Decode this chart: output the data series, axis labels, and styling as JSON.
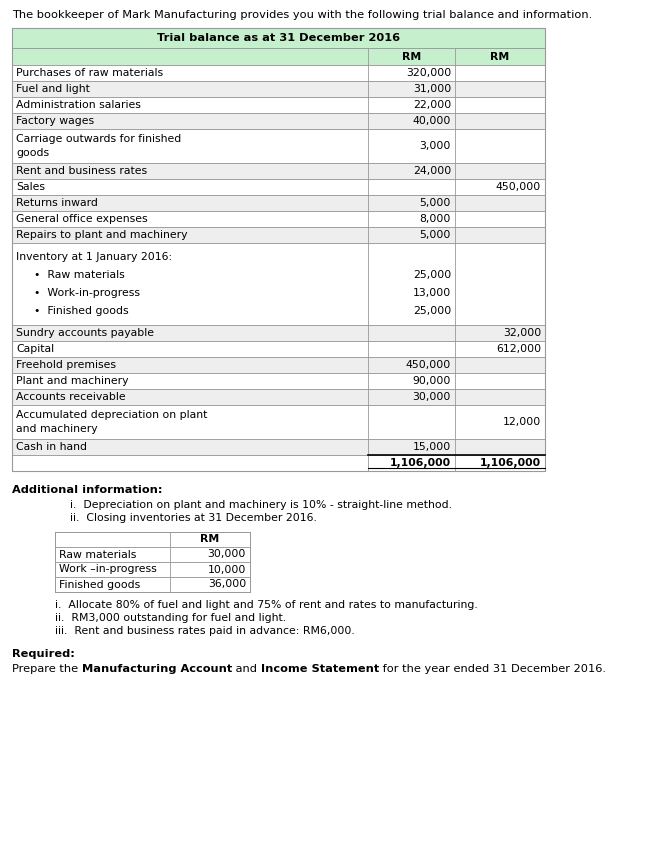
{
  "intro_text": "The bookkeeper of Mark Manufacturing provides you with the following trial balance and information.",
  "table_title": "Trial balance as at 31 December 2016",
  "header_bg": "#c6efce",
  "border_color": "#999999",
  "alt_row_bg": "#eeeeee",
  "white_row_bg": "#ffffff",
  "rows": [
    {
      "label": "Purchases of raw materials",
      "debit": "320,000",
      "credit": "",
      "lh": 1
    },
    {
      "label": "Fuel and light",
      "debit": "31,000",
      "credit": "",
      "lh": 1
    },
    {
      "label": "Administration salaries",
      "debit": "22,000",
      "credit": "",
      "lh": 1
    },
    {
      "label": "Factory wages",
      "debit": "40,000",
      "credit": "",
      "lh": 1
    },
    {
      "label": "Carriage outwards for finished\ngoods",
      "debit": "3,000",
      "credit": "",
      "lh": 2
    },
    {
      "label": "Rent and business rates",
      "debit": "24,000",
      "credit": "",
      "lh": 1
    },
    {
      "label": "Sales",
      "debit": "",
      "credit": "450,000",
      "lh": 1
    },
    {
      "label": "Returns inward",
      "debit": "5,000",
      "credit": "",
      "lh": 1
    },
    {
      "label": "General office expenses",
      "debit": "8,000",
      "credit": "",
      "lh": 1
    },
    {
      "label": "Repairs to plant and machinery",
      "debit": "5,000",
      "credit": "",
      "lh": 1
    },
    {
      "label": "Inventory at 1 January 2016:\n    •  Raw materials\n    •  Work-in-progress\n    •  Finished goods",
      "debit": "25,000\n13,000\n25,000",
      "credit": "",
      "lh": 5
    },
    {
      "label": "Sundry accounts payable",
      "debit": "",
      "credit": "32,000",
      "lh": 1
    },
    {
      "label": "Capital",
      "debit": "",
      "credit": "612,000",
      "lh": 1
    },
    {
      "label": "Freehold premises",
      "debit": "450,000",
      "credit": "",
      "lh": 1
    },
    {
      "label": "Plant and machinery",
      "debit": "90,000",
      "credit": "",
      "lh": 1
    },
    {
      "label": "Accounts receivable",
      "debit": "30,000",
      "credit": "",
      "lh": 1
    },
    {
      "label": "Accumulated depreciation on plant\nand machinery",
      "debit": "",
      "credit": "12,000",
      "lh": 2
    },
    {
      "label": "Cash in hand",
      "debit": "15,000",
      "credit": "",
      "lh": 1
    },
    {
      "label": "",
      "debit": "1,106,000",
      "credit": "1,106,000",
      "lh": 1
    }
  ],
  "additional_info_title": "Additional information:",
  "additional_info_lines": [
    "i.  Depreciation on plant and machinery is 10% - straight-line method.",
    "ii.  Closing inventories at 31 December 2016."
  ],
  "small_table_rows": [
    {
      "label": "Raw materials",
      "value": "30,000"
    },
    {
      "label": "Work –in-progress",
      "value": "10,000"
    },
    {
      "label": "Finished goods",
      "value": "36,000"
    }
  ],
  "extra_notes": [
    "i.  Allocate 80% of fuel and light and 75% of rent and rates to manufacturing.",
    "ii.  RM3,000 outstanding for fuel and light.",
    "iii.  Rent and business rates paid in advance: RM6,000."
  ],
  "required_title": "Required:",
  "required_segments": [
    {
      "text": "Prepare the ",
      "bold": false
    },
    {
      "text": "Manufacturing Account",
      "bold": true
    },
    {
      "text": " and ",
      "bold": false
    },
    {
      "text": "Income Statement",
      "bold": true
    },
    {
      "text": " for the year ended 31 December 2016.",
      "bold": false
    }
  ]
}
